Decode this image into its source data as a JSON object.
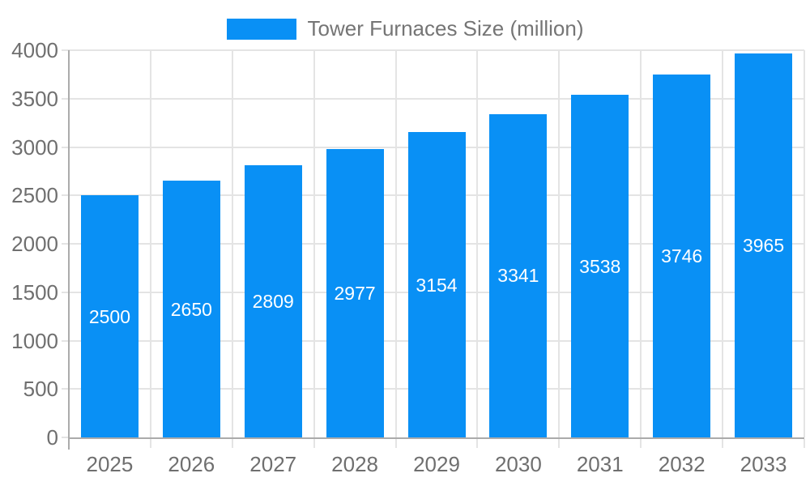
{
  "legend": {
    "items": [
      {
        "label": "Tower Furnaces Size (million)",
        "swatch_color": "#0990F5"
      }
    ]
  },
  "chart_data": {
    "type": "bar",
    "title": "Tower Furnaces Size (million)",
    "categories": [
      "2025",
      "2026",
      "2027",
      "2028",
      "2029",
      "2030",
      "2031",
      "2032",
      "2033"
    ],
    "series": [
      {
        "name": "Tower Furnaces Size (million)",
        "values": [
          2500,
          2650,
          2809,
          2977,
          3154,
          3341,
          3538,
          3746,
          3965
        ]
      }
    ],
    "ylim": [
      0,
      4000
    ],
    "ytick_step": 500,
    "yticks": [
      0,
      500,
      1000,
      1500,
      2000,
      2500,
      3000,
      3500,
      4000
    ],
    "grid": true,
    "legend_position": "top-center",
    "value_label_position": "inside-center",
    "colors": {
      "bar": "#0990F5",
      "grid": "#E4E4E4",
      "axis": "#ABABAB",
      "tick_label": "#6F6F6F",
      "legend_text": "#757575",
      "value_label": "#FFFFFF",
      "background": "#FFFFFF"
    }
  }
}
